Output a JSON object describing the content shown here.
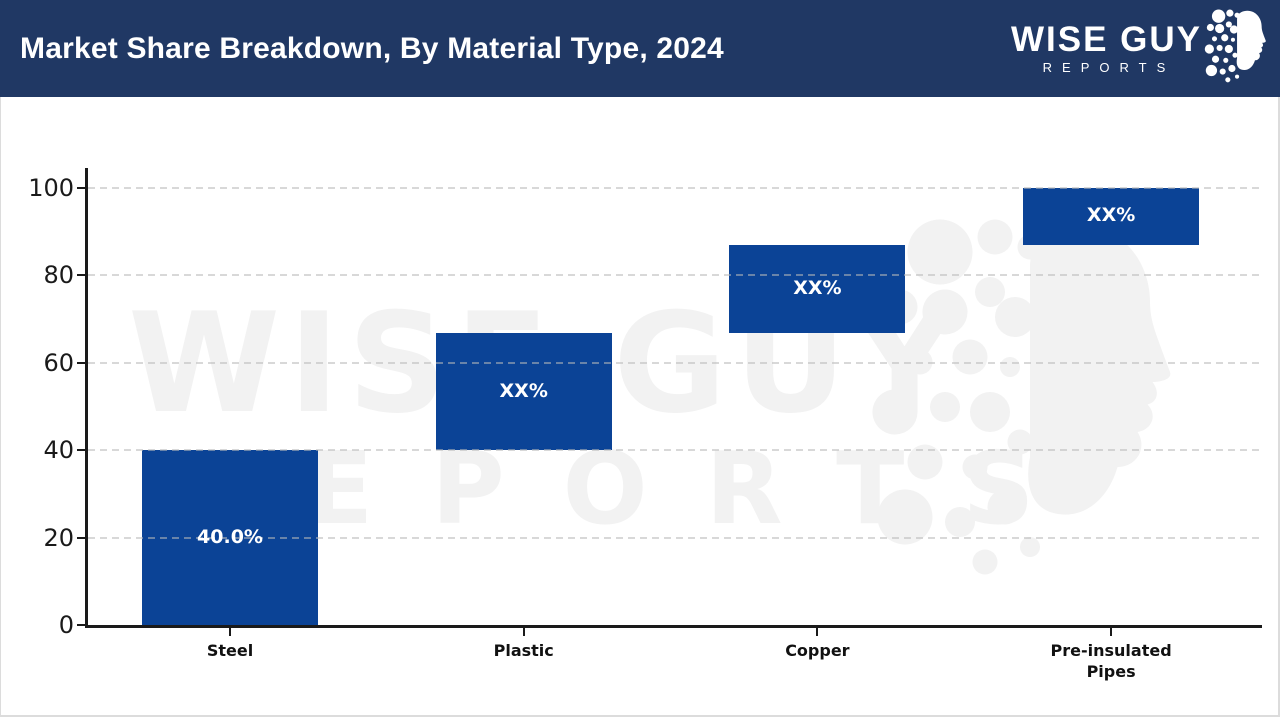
{
  "header": {
    "title": "Market Share Breakdown, By Material Type, 2024",
    "logo_line1": "WISE GUY",
    "logo_line2": "REPORTS"
  },
  "watermark": {
    "line1": "WISE GUY",
    "line2": "REPORTS"
  },
  "colors": {
    "header_bg": "#203864",
    "bar": "#0b4396",
    "bar_label": "#ffffff",
    "axis": "#1a1a1a",
    "grid": "#e6e6e6",
    "watermark": "#f2f2f2"
  },
  "chart_data": {
    "type": "bar",
    "subtype": "waterfall",
    "title": "Market Share Breakdown, By Material Type, 2024",
    "xlabel": "",
    "ylabel": "",
    "ylim": [
      0,
      100
    ],
    "yticks": [
      0,
      20,
      40,
      60,
      80,
      100
    ],
    "grid": "horizontal-dashed-over-bars",
    "legend": "none",
    "bar_color": "#0b4396",
    "categories": [
      "Steel",
      "Plastic",
      "Copper",
      "Pre-insulated\nPipes"
    ],
    "segments": [
      {
        "category": "Steel",
        "start": 0,
        "end": 40,
        "value": 40.0,
        "label": "40.0%"
      },
      {
        "category": "Plastic",
        "start": 40,
        "end": 66.7,
        "value": 26.7,
        "label": "XX%"
      },
      {
        "category": "Copper",
        "start": 66.7,
        "end": 86.9,
        "value": 20.2,
        "label": "XX%"
      },
      {
        "category": "Pre-insulated\nPipes",
        "start": 86.9,
        "end": 100,
        "value": 13.1,
        "label": "XX%"
      }
    ]
  }
}
